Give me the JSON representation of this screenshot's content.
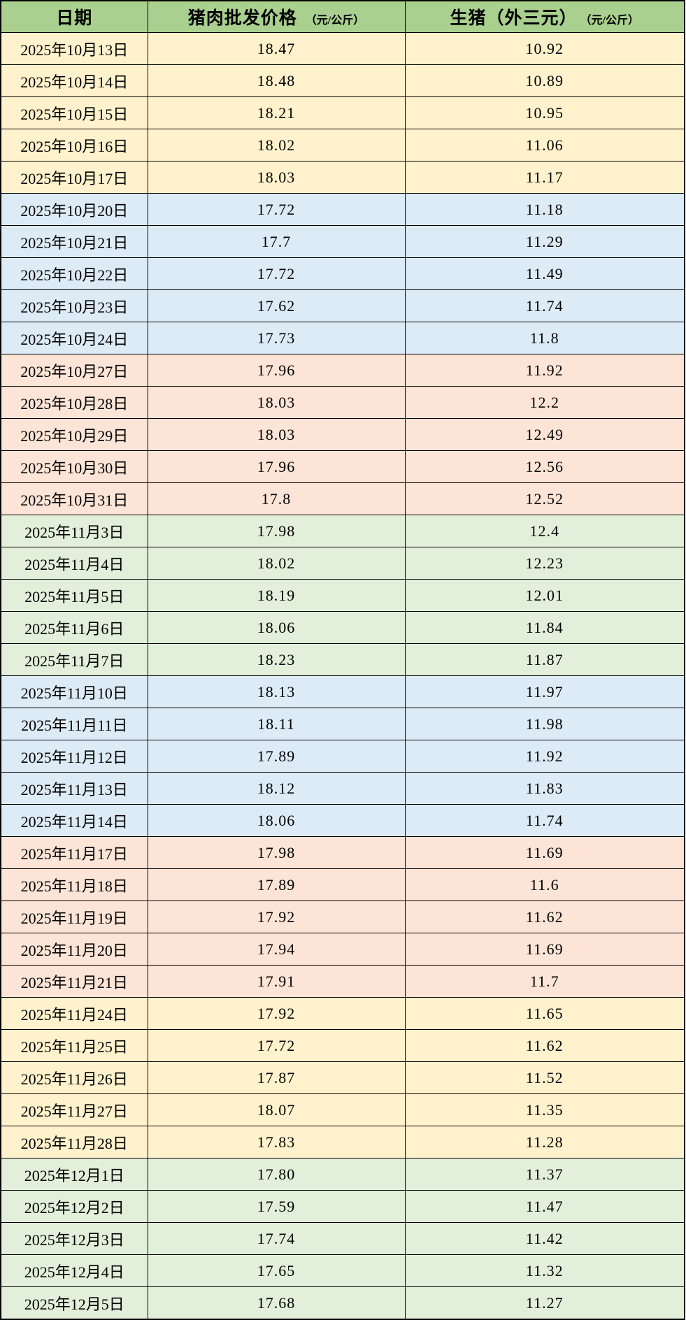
{
  "table": {
    "headers": [
      {
        "label": "日期",
        "unit": ""
      },
      {
        "label": "猪肉批发价格",
        "unit": "（元/公斤）"
      },
      {
        "label": "生猪（外三元）",
        "unit": "（元/公斤）"
      }
    ]
  },
  "colors": {
    "header_bg": "#A9D08E",
    "yellow": "#FFF2CC",
    "blue": "#DDEBF7",
    "pink": "#FCE4D6",
    "green": "#E2EFDA",
    "border": "#000000",
    "text": "#000000"
  },
  "chart_data": {
    "type": "table",
    "columns": [
      "日期",
      "猪肉批发价格（元/公斤）",
      "生猪（外三元）（元/公斤）"
    ],
    "rows": [
      {
        "date": "2025年10月13日",
        "pork": "18.47",
        "hog": "10.92",
        "group": "yellow"
      },
      {
        "date": "2025年10月14日",
        "pork": "18.48",
        "hog": "10.89",
        "group": "yellow"
      },
      {
        "date": "2025年10月15日",
        "pork": "18.21",
        "hog": "10.95",
        "group": "yellow"
      },
      {
        "date": "2025年10月16日",
        "pork": "18.02",
        "hog": "11.06",
        "group": "yellow"
      },
      {
        "date": "2025年10月17日",
        "pork": "18.03",
        "hog": "11.17",
        "group": "yellow"
      },
      {
        "date": "2025年10月20日",
        "pork": "17.72",
        "hog": "11.18",
        "group": "blue"
      },
      {
        "date": "2025年10月21日",
        "pork": "17.7",
        "hog": "11.29",
        "group": "blue"
      },
      {
        "date": "2025年10月22日",
        "pork": "17.72",
        "hog": "11.49",
        "group": "blue"
      },
      {
        "date": "2025年10月23日",
        "pork": "17.62",
        "hog": "11.74",
        "group": "blue"
      },
      {
        "date": "2025年10月24日",
        "pork": "17.73",
        "hog": "11.8",
        "group": "blue"
      },
      {
        "date": "2025年10月27日",
        "pork": "17.96",
        "hog": "11.92",
        "group": "pink"
      },
      {
        "date": "2025年10月28日",
        "pork": "18.03",
        "hog": "12.2",
        "group": "pink"
      },
      {
        "date": "2025年10月29日",
        "pork": "18.03",
        "hog": "12.49",
        "group": "pink"
      },
      {
        "date": "2025年10月30日",
        "pork": "17.96",
        "hog": "12.56",
        "group": "pink"
      },
      {
        "date": "2025年10月31日",
        "pork": "17.8",
        "hog": "12.52",
        "group": "pink"
      },
      {
        "date": "2025年11月3日",
        "pork": "17.98",
        "hog": "12.4",
        "group": "green"
      },
      {
        "date": "2025年11月4日",
        "pork": "18.02",
        "hog": "12.23",
        "group": "green"
      },
      {
        "date": "2025年11月5日",
        "pork": "18.19",
        "hog": "12.01",
        "group": "green"
      },
      {
        "date": "2025年11月6日",
        "pork": "18.06",
        "hog": "11.84",
        "group": "green"
      },
      {
        "date": "2025年11月7日",
        "pork": "18.23",
        "hog": "11.87",
        "group": "green"
      },
      {
        "date": "2025年11月10日",
        "pork": "18.13",
        "hog": "11.97",
        "group": "blue"
      },
      {
        "date": "2025年11月11日",
        "pork": "18.11",
        "hog": "11.98",
        "group": "blue"
      },
      {
        "date": "2025年11月12日",
        "pork": "17.89",
        "hog": "11.92",
        "group": "blue"
      },
      {
        "date": "2025年11月13日",
        "pork": "18.12",
        "hog": "11.83",
        "group": "blue"
      },
      {
        "date": "2025年11月14日",
        "pork": "18.06",
        "hog": "11.74",
        "group": "blue"
      },
      {
        "date": "2025年11月17日",
        "pork": "17.98",
        "hog": "11.69",
        "group": "pink"
      },
      {
        "date": "2025年11月18日",
        "pork": "17.89",
        "hog": "11.6",
        "group": "pink"
      },
      {
        "date": "2025年11月19日",
        "pork": "17.92",
        "hog": "11.62",
        "group": "pink"
      },
      {
        "date": "2025年11月20日",
        "pork": "17.94",
        "hog": "11.69",
        "group": "pink"
      },
      {
        "date": "2025年11月21日",
        "pork": "17.91",
        "hog": "11.7",
        "group": "pink"
      },
      {
        "date": "2025年11月24日",
        "pork": "17.92",
        "hog": "11.65",
        "group": "yellow"
      },
      {
        "date": "2025年11月25日",
        "pork": "17.72",
        "hog": "11.62",
        "group": "yellow"
      },
      {
        "date": "2025年11月26日",
        "pork": "17.87",
        "hog": "11.52",
        "group": "yellow"
      },
      {
        "date": "2025年11月27日",
        "pork": "18.07",
        "hog": "11.35",
        "group": "yellow"
      },
      {
        "date": "2025年11月28日",
        "pork": "17.83",
        "hog": "11.28",
        "group": "yellow"
      },
      {
        "date": "2025年12月1日",
        "pork": "17.80",
        "hog": "11.37",
        "group": "green"
      },
      {
        "date": "2025年12月2日",
        "pork": "17.59",
        "hog": "11.47",
        "group": "green"
      },
      {
        "date": "2025年12月3日",
        "pork": "17.74",
        "hog": "11.42",
        "group": "green"
      },
      {
        "date": "2025年12月4日",
        "pork": "17.65",
        "hog": "11.32",
        "group": "green"
      },
      {
        "date": "2025年12月5日",
        "pork": "17.68",
        "hog": "11.27",
        "group": "green"
      }
    ]
  }
}
